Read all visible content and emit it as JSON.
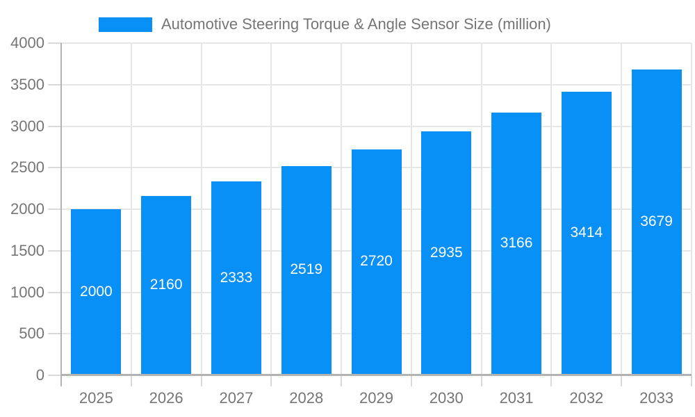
{
  "chart_data": {
    "type": "bar",
    "title": "Automotive Steering Torque & Angle Sensor Size (million)",
    "series_name": "Automotive Steering Torque & Angle Sensor Size (million)",
    "categories": [
      "2025",
      "2026",
      "2027",
      "2028",
      "2029",
      "2030",
      "2031",
      "2032",
      "2033"
    ],
    "values": [
      2000,
      2160,
      2333,
      2519,
      2720,
      2935,
      3166,
      3414,
      3679
    ],
    "xlabel": "",
    "ylabel": "",
    "ylim": [
      0,
      4000
    ],
    "y_tick_step": 500,
    "y_ticks": [
      0,
      500,
      1000,
      1500,
      2000,
      2500,
      3000,
      3500,
      4000
    ],
    "grid": true,
    "legend_position": "top",
    "colors": {
      "bar": "#0990f7",
      "bar_label": "#ffffff",
      "axis_text": "#757575",
      "grid_line": "#e6e6e6",
      "tick_line": "#d9d9d9",
      "axis_line": "#b3b3b3",
      "background": "#ffffff"
    }
  }
}
